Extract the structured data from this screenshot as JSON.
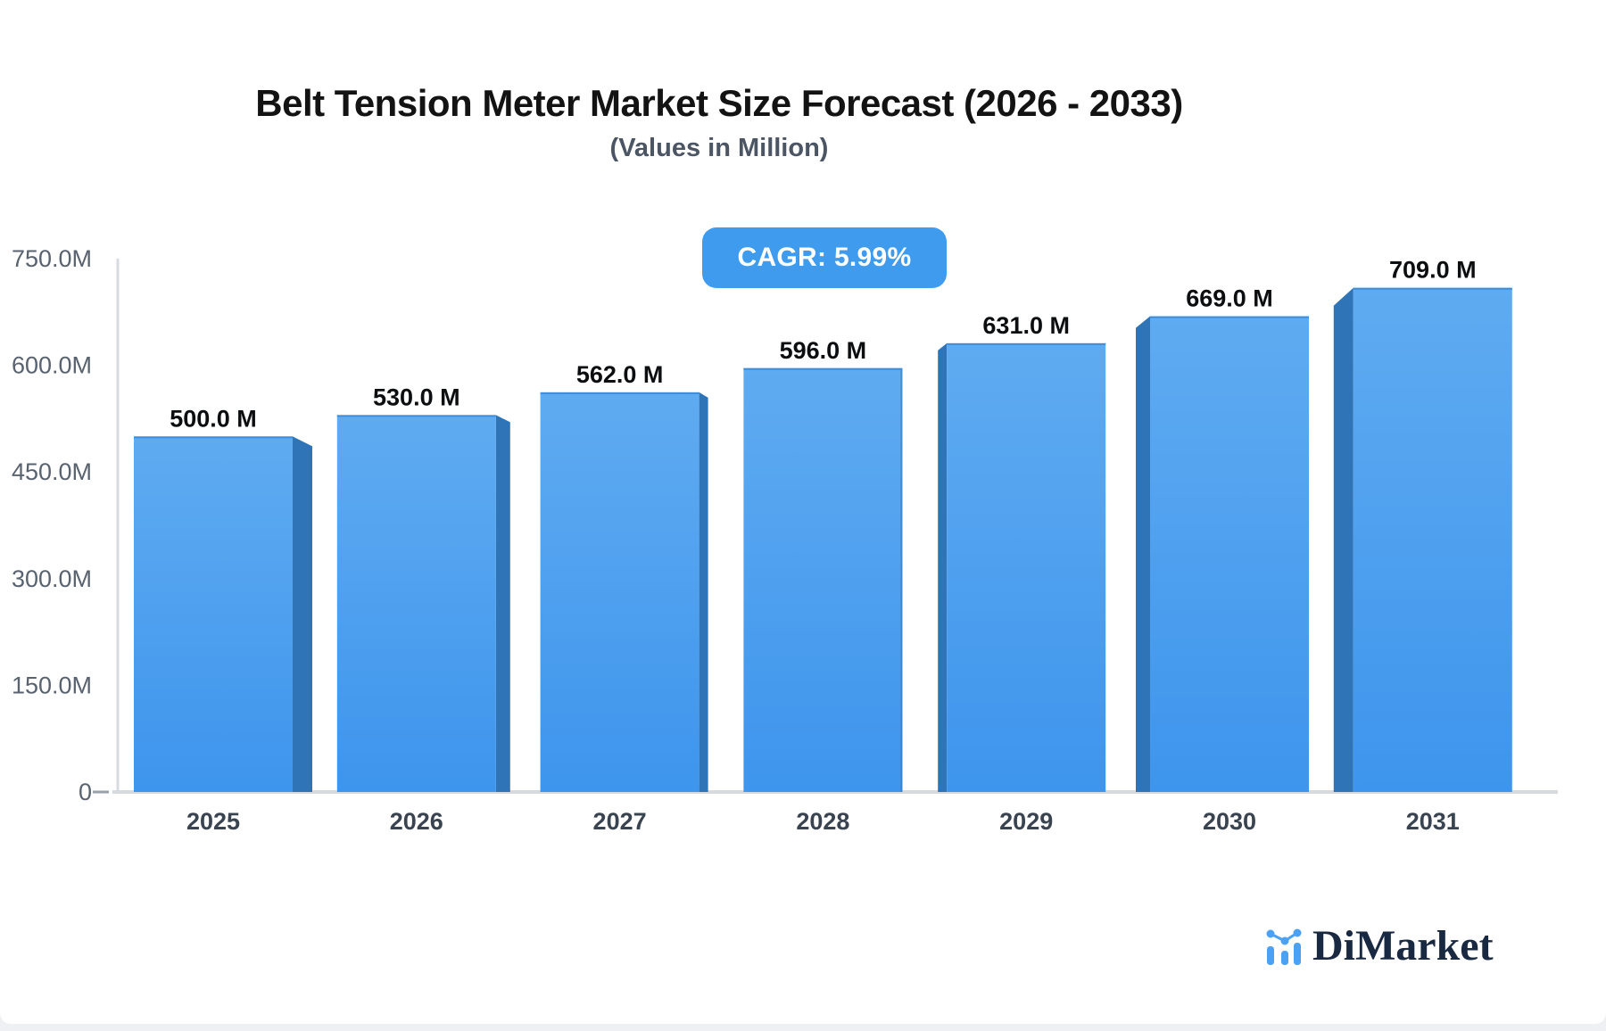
{
  "badge": {
    "label": "CAGR: 5.99%",
    "color": "#3F9BED"
  },
  "chart_data": {
    "type": "bar",
    "title": "Belt Tension Meter Market Size Forecast (2026 - 2033)",
    "subtitle": "(Values in Million)",
    "categories": [
      "2025",
      "2026",
      "2027",
      "2028",
      "2029",
      "2030",
      "2031"
    ],
    "values": [
      500,
      530,
      562,
      596,
      631,
      669,
      709
    ],
    "value_labels": [
      "500.0 M",
      "530.0 M",
      "562.0 M",
      "596.0 M",
      "631.0 M",
      "669.0 M",
      "709.0 M"
    ],
    "y_ticks": [
      "750.0M",
      "600.0M",
      "450.0M",
      "300.0M",
      "150.0M",
      "0"
    ],
    "ylim": [
      0,
      750
    ],
    "xlabel": "",
    "ylabel": "",
    "grid": false,
    "legend_position": "none",
    "colors": {
      "bar_top": "#5FABF1",
      "bar_bottom": "#3E95ED",
      "bar_side": "#2E74B6",
      "bar_top_edge": "#3F8CD9",
      "axis": "#D7DADF",
      "zero_tick": "#99A1AB",
      "tick_text": "#59626F",
      "category_text": "#3A4450",
      "value_text": "#0D0E10"
    }
  },
  "logo": {
    "icon": "mini-bar-chart-icon",
    "text": "DiMarket",
    "text_color": "#1A2942",
    "icon_color": "#4BA1F3"
  }
}
